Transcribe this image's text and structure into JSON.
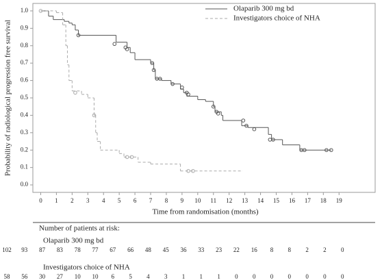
{
  "chart_data": {
    "type": "step",
    "x_label": "Time from randomisation (months)",
    "y_label": "Probability of radiological  progression free survival",
    "xlim": [
      -0.5,
      21.3
    ],
    "ylim": [
      -0.043,
      1.043
    ],
    "xticks": [
      0,
      1,
      2,
      3,
      4,
      5,
      6,
      7,
      8,
      9,
      10,
      11,
      12,
      13,
      14,
      15,
      16,
      17,
      18,
      19
    ],
    "yticks": [
      {
        "value": 0,
        "label": "0.0"
      },
      0.1,
      0.2,
      0.3,
      0.4,
      0.5,
      0.6,
      0.7,
      0.8,
      0.9,
      {
        "value": 1,
        "label": "1.0"
      }
    ],
    "series": [
      {
        "name": "Olaparib 300 mg bd",
        "color": "#555555",
        "dashed": false,
        "x": [
          0,
          0.5,
          0.8,
          1.5,
          1.8,
          2.0,
          2.2,
          2.4,
          4.8,
          5.5,
          5.7,
          6.0,
          7.0,
          7.2,
          7.3,
          7.7,
          8.3,
          8.9,
          9.1,
          9.3,
          10.0,
          10.5,
          11.0,
          11.1,
          11.5,
          11.6,
          12.8,
          13.2,
          14.5,
          14.7,
          15.4,
          16.5,
          18.5
        ],
        "values": [
          1.0,
          0.97,
          0.95,
          0.94,
          0.93,
          0.92,
          0.89,
          0.86,
          0.82,
          0.79,
          0.76,
          0.72,
          0.7,
          0.66,
          0.61,
          0.6,
          0.58,
          0.55,
          0.53,
          0.51,
          0.49,
          0.48,
          0.45,
          0.42,
          0.4,
          0.37,
          0.34,
          0.33,
          0.29,
          0.26,
          0.23,
          0.2,
          0.2
        ],
        "censored_x": [
          2.4,
          4.7,
          5.4,
          5.5,
          7.1,
          7.2,
          7.4,
          7.6,
          8.4,
          9.0,
          9.3,
          9.4,
          11.0,
          11.2,
          11.3,
          12.9,
          13.1,
          13.6,
          14.6,
          14.8,
          16.6,
          16.8,
          18.2,
          18.5
        ],
        "censored_y": [
          0.86,
          0.81,
          0.79,
          0.78,
          0.7,
          0.66,
          0.61,
          0.61,
          0.58,
          0.56,
          0.53,
          0.52,
          0.45,
          0.42,
          0.41,
          0.37,
          0.34,
          0.32,
          0.26,
          0.26,
          0.2,
          0.2,
          0.2,
          0.2
        ]
      },
      {
        "name": "Investigators choice of NHA",
        "color": "#aaaaaa",
        "dashed": true,
        "x": [
          0,
          1.0,
          1.4,
          1.6,
          1.7,
          1.8,
          2.0,
          2.6,
          3.0,
          3.4,
          3.5,
          3.6,
          3.8,
          5.0,
          5.3,
          6.2,
          7.0,
          8.9,
          12.8
        ],
        "values": [
          1.0,
          0.99,
          0.92,
          0.8,
          0.69,
          0.6,
          0.54,
          0.52,
          0.5,
          0.4,
          0.3,
          0.25,
          0.2,
          0.18,
          0.16,
          0.13,
          0.12,
          0.08,
          0.08
        ],
        "censored_x": [
          0,
          2.2,
          3.4,
          5.5,
          5.8,
          9.4,
          9.7
        ],
        "censored_y": [
          1.0,
          0.53,
          0.4,
          0.16,
          0.16,
          0.08,
          0.08
        ]
      }
    ],
    "risk_table": {
      "title": "Number of patients  at risk:",
      "rows": [
        {
          "name": "Olaparib 300 mg bd",
          "values": [
            102,
            93,
            87,
            83,
            78,
            77,
            67,
            66,
            48,
            45,
            36,
            33,
            23,
            22,
            16,
            8,
            8,
            2,
            2,
            0
          ]
        },
        {
          "name": "Investigators choice of NHA",
          "values": [
            58,
            56,
            30,
            27,
            10,
            10,
            6,
            5,
            4,
            3,
            1,
            1,
            1,
            0,
            0,
            0,
            0,
            0,
            0,
            0
          ]
        }
      ]
    }
  }
}
